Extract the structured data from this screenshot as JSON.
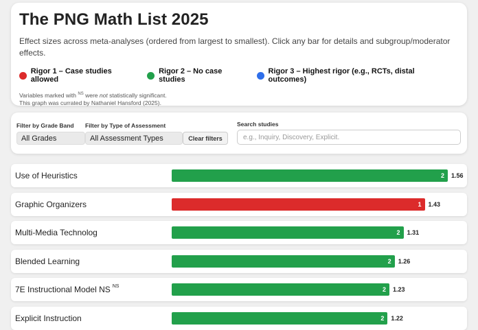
{
  "header": {
    "title": "The PNG Math List 2025",
    "subtitle": "Effect sizes across meta-analyses (ordered from largest to smallest). Click any bar for details and subgroup/moderator effects.",
    "legend": [
      {
        "label": "Rigor 1 – Case studies allowed",
        "color": "#dc2b2b"
      },
      {
        "label": "Rigor 2 – No case studies",
        "color": "#22a04b"
      },
      {
        "label": "Rigor 3 – Highest rigor (e.g., RCTs, distal outcomes)",
        "color": "#2f6fea"
      }
    ],
    "note_prefix": "Variables marked with",
    "note_sup": "NS",
    "note_mid": "were",
    "note_em": "not",
    "note_suffix": "statistically significant.",
    "note_line2": "This graph was currated by Nathaniel Hansford (2025)."
  },
  "filters": {
    "grade_label": "Filter by Grade Band",
    "grade_value": "All Grades",
    "assessment_label": "Filter by Type of Assessment",
    "assessment_value": "All Assessment Types",
    "clear_label": "Clear filters",
    "search_label": "Search studies",
    "search_placeholder": "e.g., Inquiry, Discovery, Explicit."
  },
  "chart_data": {
    "type": "bar",
    "max_value": 1.56,
    "rigor_colors": {
      "1": "#dc2b2b",
      "2": "#22a04b",
      "3": "#2f6fea"
    },
    "rows": [
      {
        "label": "Use of Heuristics",
        "sup": "",
        "value": 1.56,
        "value_label": "1.56",
        "rigor": "2"
      },
      {
        "label": "Graphic Organizers",
        "sup": "",
        "value": 1.43,
        "value_label": "1.43",
        "rigor": "1"
      },
      {
        "label": "Multi-Media Technolog",
        "sup": "",
        "value": 1.31,
        "value_label": "1.31",
        "rigor": "2"
      },
      {
        "label": "Blended Learning",
        "sup": "",
        "value": 1.26,
        "value_label": "1.26",
        "rigor": "2"
      },
      {
        "label": "7E Instructional Model NS",
        "sup": "NS",
        "value": 1.23,
        "value_label": "1.23",
        "rigor": "2"
      },
      {
        "label": "Explicit Instruction",
        "sup": "",
        "value": 1.22,
        "value_label": "1.22",
        "rigor": "2"
      }
    ]
  }
}
